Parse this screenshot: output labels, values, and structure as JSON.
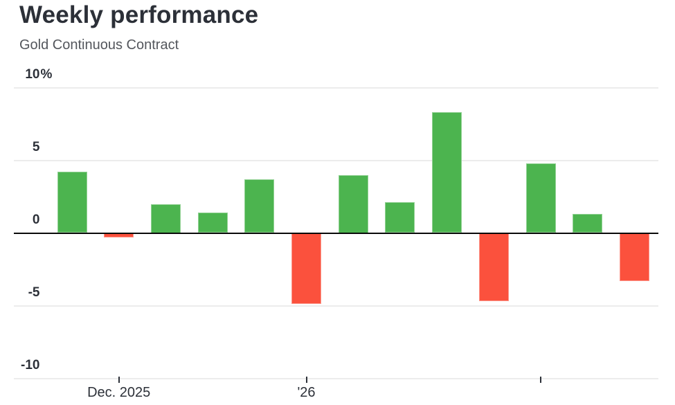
{
  "header": {
    "title": "Weekly performance",
    "subtitle": "Gold Continuous Contract"
  },
  "chart_data": {
    "type": "bar",
    "title": "Weekly performance",
    "subtitle": "Gold Continuous Contract",
    "unit": "percent",
    "description": "Weekly percent change bars, green for gains and red for losses",
    "values": [
      4.2,
      -0.3,
      2.0,
      1.4,
      3.7,
      -4.9,
      4.0,
      2.1,
      8.3,
      -4.7,
      4.8,
      1.3,
      -3.3
    ],
    "y_axis": {
      "range": [
        -10,
        10
      ],
      "ticks": [
        {
          "value": 10,
          "label": "10",
          "suffix": "%"
        },
        {
          "value": 5,
          "label": "5",
          "suffix": ""
        },
        {
          "value": 0,
          "label": "0",
          "suffix": ""
        },
        {
          "value": -5,
          "label": "-5",
          "suffix": ""
        },
        {
          "value": -10,
          "label": "-10",
          "suffix": ""
        }
      ]
    },
    "x_axis": {
      "ticks": [
        {
          "bar_index": 1,
          "label": "Dec. 2025"
        },
        {
          "bar_index": 5,
          "label": "'26"
        },
        {
          "bar_index": 10,
          "label": ""
        }
      ]
    },
    "grid": true,
    "legend": false,
    "colors": {
      "positive": "#4cb44f",
      "negative": "#fb513d",
      "gridline": "#ececec",
      "zero_line": "#0a0a0a",
      "axis_text": "#2c3038",
      "title_text": "#2c3038",
      "subtitle_text": "#53565c"
    }
  }
}
